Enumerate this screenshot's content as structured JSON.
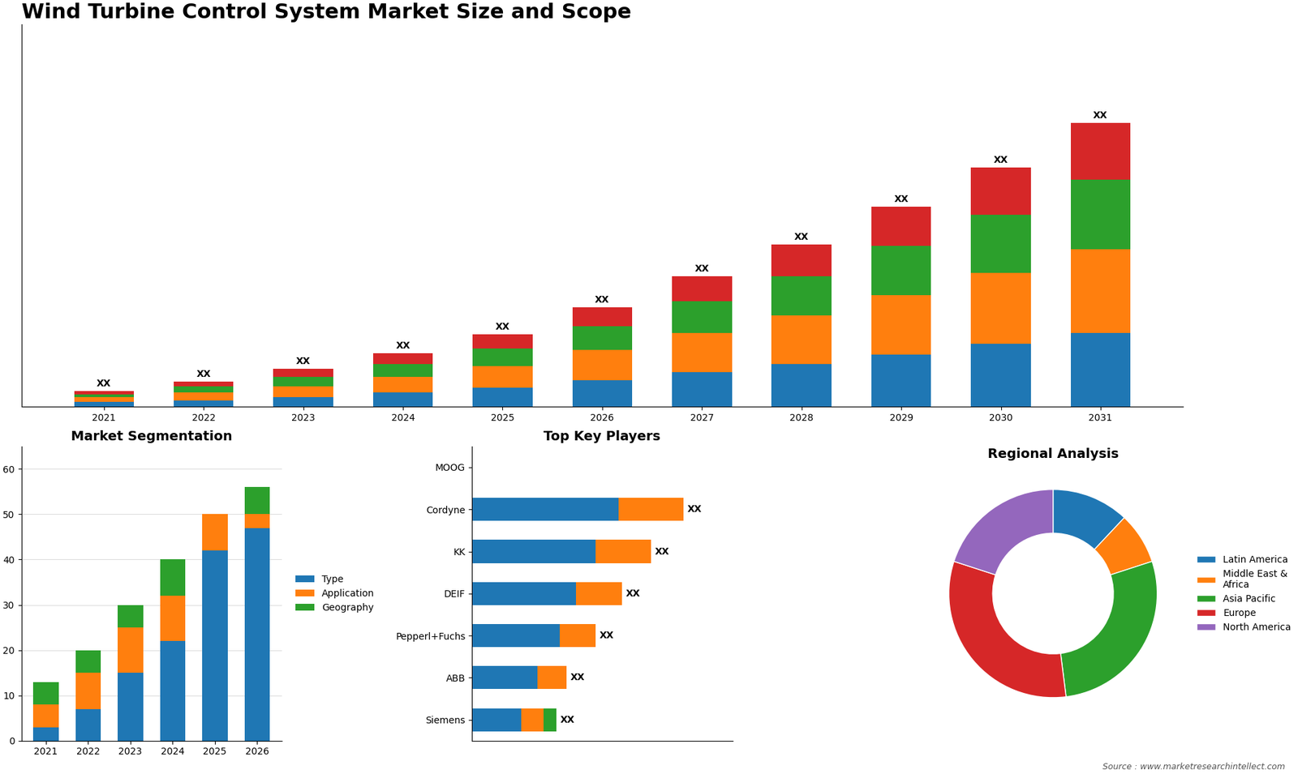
{
  "chart_data": [
    {
      "type": "bar",
      "stacked": true,
      "title": "Wind Turbine Control System Market Size and Scope",
      "categories": [
        "2021",
        "2022",
        "2023",
        "2024",
        "2025",
        "2026",
        "2027",
        "2028",
        "2029",
        "2030",
        "2031"
      ],
      "series": [
        {
          "values": [
            3,
            4,
            6,
            9,
            12,
            17,
            22,
            27,
            33,
            40,
            47
          ]
        },
        {
          "values": [
            3,
            5,
            7,
            10,
            14,
            19,
            25,
            31,
            38,
            45,
            53
          ]
        },
        {
          "values": [
            2,
            4,
            6,
            8,
            11,
            15,
            20,
            25,
            31,
            37,
            44
          ]
        },
        {
          "values": [
            2,
            3,
            5,
            7,
            9,
            12,
            16,
            20,
            25,
            30,
            36
          ]
        }
      ],
      "ylim": [
        0,
        243
      ],
      "tick_labels": "x",
      "grid": false,
      "annotations": [
        {
          "text": "XX",
          "x": "2021",
          "y": 10
        },
        {
          "text": "XX",
          "x": "2022",
          "y": 16
        },
        {
          "text": "XX",
          "x": "2023",
          "y": 24
        },
        {
          "text": "XX",
          "x": "2024",
          "y": 34
        },
        {
          "text": "XX",
          "x": "2025",
          "y": 46
        },
        {
          "text": "XX",
          "x": "2026",
          "y": 63
        },
        {
          "text": "XX",
          "x": "2027",
          "y": 83
        },
        {
          "text": "XX",
          "x": "2028",
          "y": 103
        },
        {
          "text": "XX",
          "x": "2029",
          "y": 127
        },
        {
          "text": "XX",
          "x": "2030",
          "y": 152
        },
        {
          "text": "XX",
          "x": "2031",
          "y": 180
        },
        {
          "text": "Source : www.marketresearchintellect.com"
        }
      ]
    },
    {
      "type": "bar",
      "stacked": true,
      "title": "Market Segmentation",
      "categories": [
        "2021",
        "2022",
        "2023",
        "2024",
        "2025",
        "2026"
      ],
      "series": [
        {
          "name": "Type",
          "values": [
            3,
            7,
            15,
            22,
            42,
            47
          ]
        },
        {
          "name": "Application",
          "values": [
            5,
            8,
            10,
            10,
            8,
            3
          ]
        },
        {
          "name": "Geography",
          "values": [
            5,
            5,
            5,
            8,
            0,
            6
          ]
        }
      ],
      "ylim": [
        0,
        65
      ],
      "yticks": [
        0,
        10,
        20,
        30,
        40,
        50,
        60
      ],
      "grid": true,
      "legend": "center left"
    },
    {
      "type": "bar",
      "stacked": true,
      "orientation": "horizontal",
      "title": "Top Key Players",
      "categories": [
        "MOOG",
        "Cordyne",
        "KK",
        "DEIF",
        "Pepperl+Fuchs",
        "ABB",
        "Siemens"
      ],
      "series": [
        {
          "values": [
            0,
            45,
            38,
            32,
            27,
            20,
            15
          ]
        },
        {
          "values": [
            0,
            20,
            17,
            14,
            11,
            9,
            7
          ]
        },
        {
          "values": [
            0,
            0,
            0,
            0,
            0,
            0,
            4
          ]
        }
      ],
      "xlim": [
        0,
        80
      ],
      "tick_labels": "y",
      "grid": false,
      "annotations": [
        {
          "text": "XX",
          "x": 65,
          "y": "Cordyne"
        },
        {
          "text": "XX",
          "x": 55,
          "y": "KK"
        },
        {
          "text": "XX",
          "x": 46,
          "y": "DEIF"
        },
        {
          "text": "XX",
          "x": 38,
          "y": "Pepperl+Fuchs"
        },
        {
          "text": "XX",
          "x": 29,
          "y": "ABB"
        },
        {
          "text": "XX",
          "x": 26,
          "y": "Siemens"
        }
      ]
    },
    {
      "type": "donut",
      "title": "Regional Analysis",
      "categories": [
        "Latin America",
        "Middle East &\nAfrica",
        "Asia Pacific",
        "Europe",
        "North America"
      ],
      "values": [
        12,
        8,
        28,
        32,
        20
      ],
      "legend": "center left"
    }
  ]
}
